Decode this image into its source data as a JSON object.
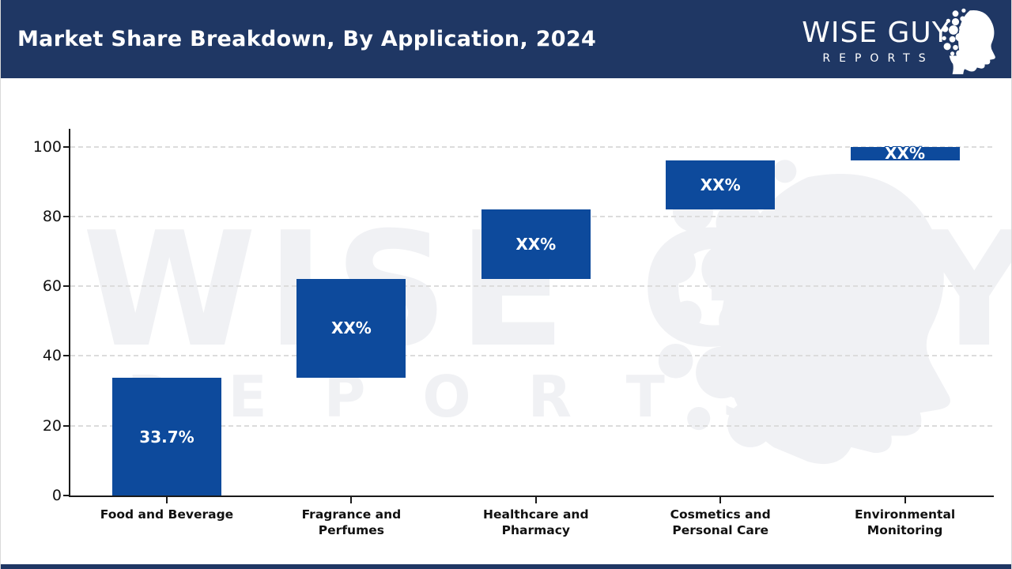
{
  "header": {
    "title": "Market Share Breakdown, By Application, 2024",
    "logo": {
      "line1": "WISE GUY",
      "line2": "REPORTS"
    }
  },
  "watermark": {
    "line1": "WISE GUY",
    "line2": "REPORTS"
  },
  "colors": {
    "header_bg": "#1f3764",
    "bar": "#0d4a9c",
    "gridline": "#dcdcdc",
    "axis": "#1a1a1a",
    "watermark": "#f0f1f4",
    "bar_label": "#ffffff",
    "title_text": "#ffffff"
  },
  "chart_data": {
    "type": "bar",
    "subtype": "waterfall",
    "title": "Market Share Breakdown, By Application, 2024",
    "categories": [
      "Food and Beverage",
      "Fragrance and Perfumes",
      "Healthcare and Pharmacy",
      "Cosmetics and Personal Care",
      "Environmental Monitoring"
    ],
    "segments": [
      {
        "category": "Food and Beverage",
        "start": 0,
        "end": 33.7,
        "label": "33.7%"
      },
      {
        "category": "Fragrance and Perfumes",
        "start": 33.7,
        "end": 62.2,
        "label": "XX%"
      },
      {
        "category": "Healthcare and Pharmacy",
        "start": 62.2,
        "end": 82.1,
        "label": "XX%"
      },
      {
        "category": "Cosmetics and Personal Care",
        "start": 82.1,
        "end": 96.1,
        "label": "XX%"
      },
      {
        "category": "Environmental Monitoring",
        "start": 96.1,
        "end": 100,
        "label": "XX%"
      }
    ],
    "yticks": [
      0,
      20,
      40,
      60,
      80,
      100
    ],
    "ylim": [
      0,
      105
    ],
    "xlabel": "",
    "ylabel": "",
    "grid": true,
    "grid_style": "dashed",
    "legend": false,
    "bar_color": "#0d4a9c"
  }
}
